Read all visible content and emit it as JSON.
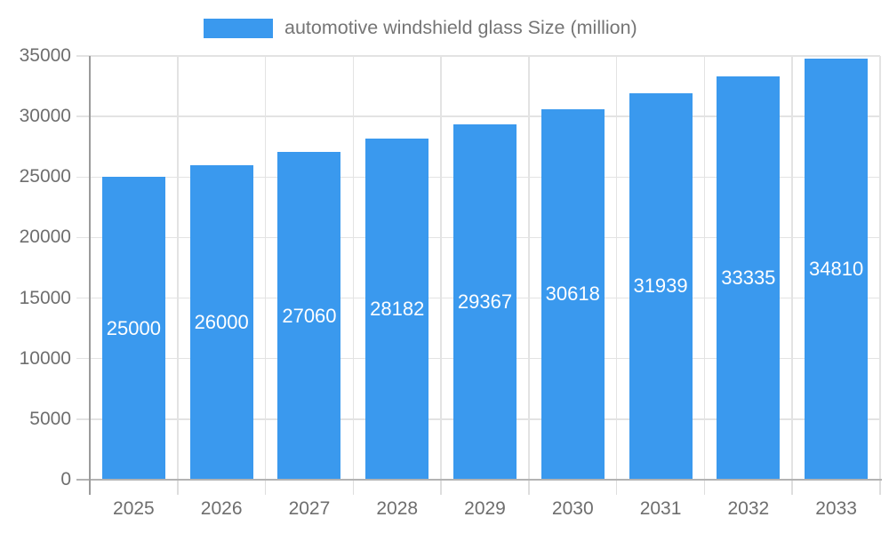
{
  "chart_data": {
    "type": "bar",
    "legend_label": "automotive windshield glass Size (million)",
    "categories": [
      "2025",
      "2026",
      "2027",
      "2028",
      "2029",
      "2030",
      "2031",
      "2032",
      "2033"
    ],
    "values": [
      25000,
      26000,
      27060,
      28182,
      29367,
      30618,
      31939,
      33335,
      34810
    ],
    "value_labels": [
      "25000",
      "26000",
      "27060",
      "28182",
      "29367",
      "30618",
      "31939",
      "33335",
      "34810"
    ],
    "yticks": [
      0,
      5000,
      10000,
      15000,
      20000,
      25000,
      30000,
      35000
    ],
    "ylim": [
      0,
      35000
    ],
    "grid": true,
    "legend_position": "top",
    "value_label_position": "inside-middle",
    "colors": {
      "bar": "#3a99ee",
      "value_label": "#ffffff",
      "axis_label": "#6e6e6e",
      "legend_text": "#757575",
      "gridline": "#e3e3e3",
      "tick": "#dedede",
      "zero_line": "#b3b3b3",
      "y_axis_line": "#9b9b9b",
      "background": "#ffffff"
    }
  }
}
